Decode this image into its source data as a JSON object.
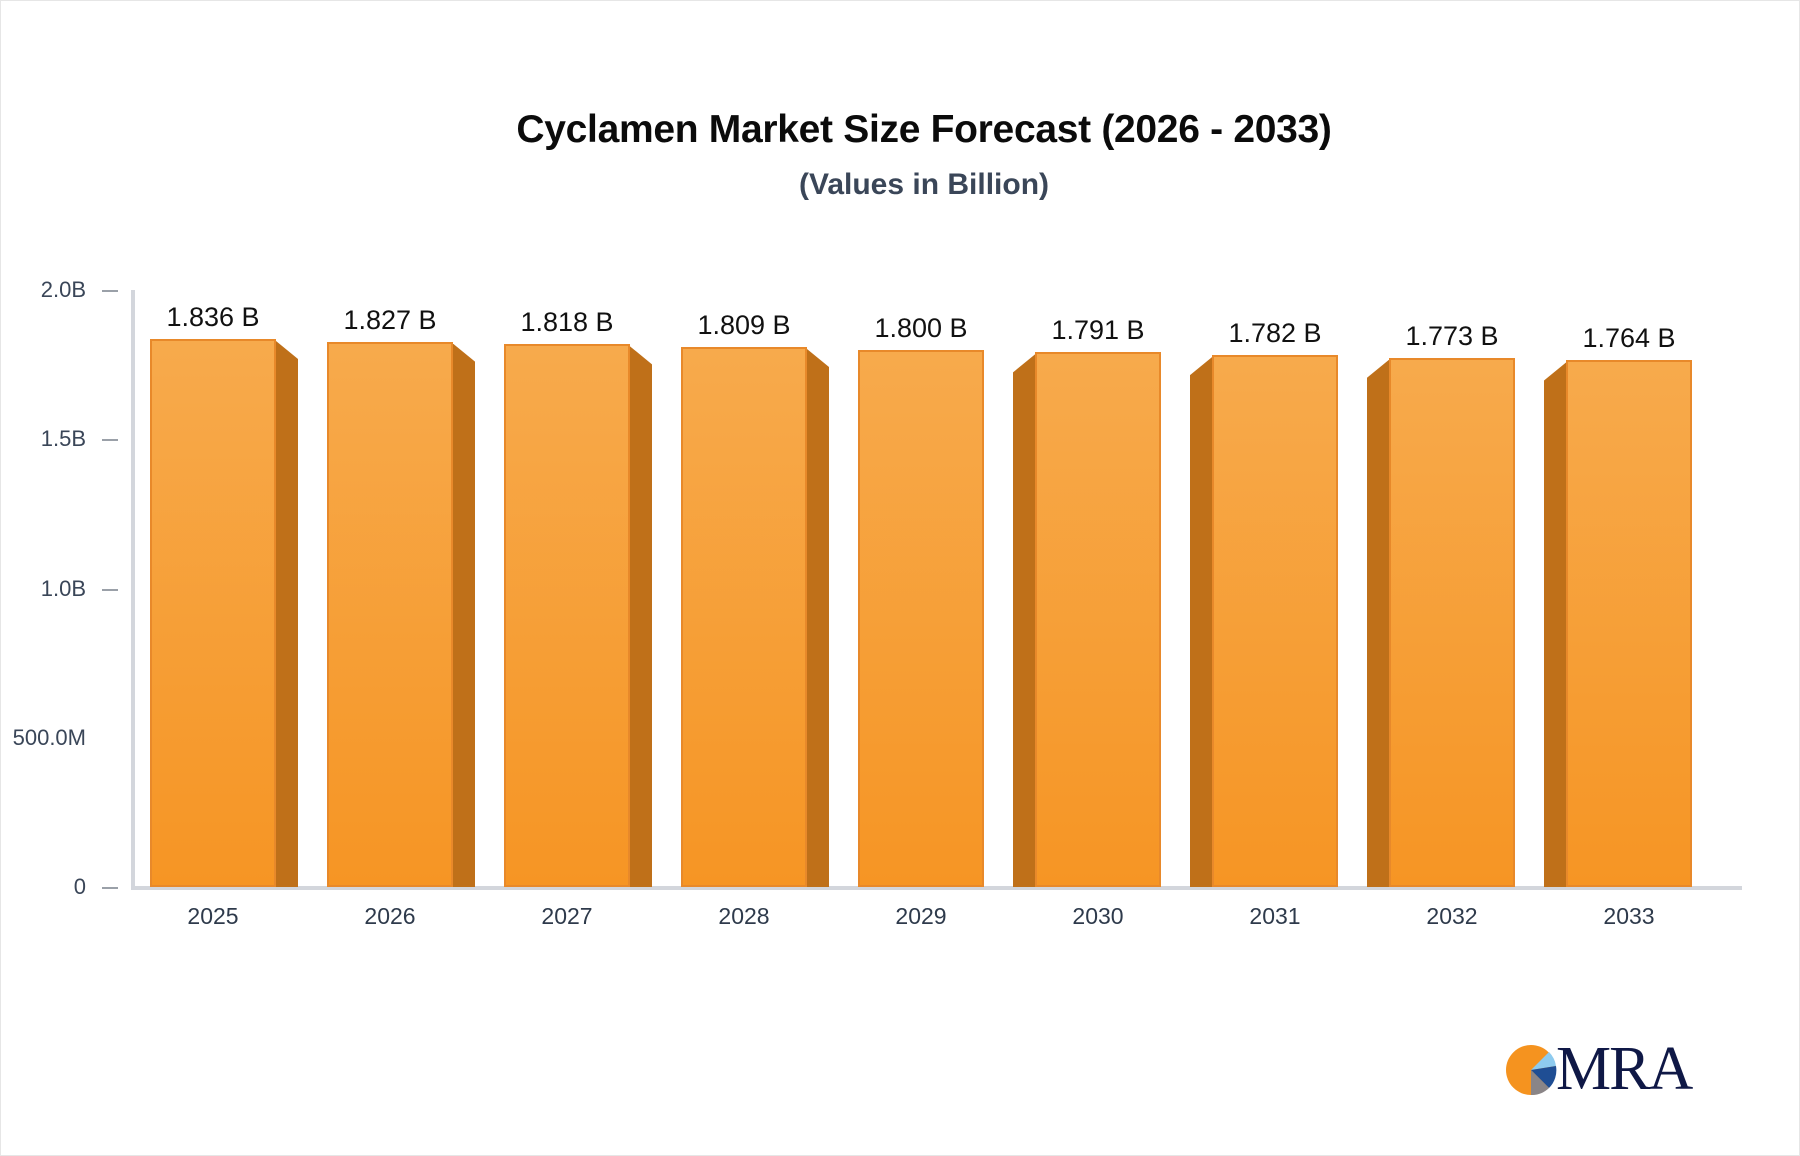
{
  "title": "Cyclamen Market Size Forecast (2026 - 2033)",
  "subtitle": "(Values in Billion)",
  "logo": {
    "text": "MRA",
    "icon": "pie-chart-logo-icon"
  },
  "colors": {
    "bar_front": "#f69524",
    "bar_top": "#f7aa4c",
    "bar_side": "#bf7019",
    "axis": "#d3d6dc",
    "title": "#0b0b0b",
    "subtitle": "#3a4658"
  },
  "y_axis": {
    "ticks": [
      "2.0B",
      "1.5B",
      "1.0B",
      "500.0M",
      "0"
    ]
  },
  "x_axis": {
    "ticks": [
      "2025",
      "2026",
      "2027",
      "2028",
      "2029",
      "2030",
      "2031",
      "2032",
      "2033"
    ]
  },
  "bars": [
    {
      "year": "2025",
      "value": 1.836,
      "label": "1.836 B"
    },
    {
      "year": "2026",
      "value": 1.827,
      "label": "1.827 B"
    },
    {
      "year": "2027",
      "value": 1.818,
      "label": "1.818 B"
    },
    {
      "year": "2028",
      "value": 1.809,
      "label": "1.809 B"
    },
    {
      "year": "2029",
      "value": 1.8,
      "label": "1.800 B"
    },
    {
      "year": "2030",
      "value": 1.791,
      "label": "1.791 B"
    },
    {
      "year": "2031",
      "value": 1.782,
      "label": "1.782 B"
    },
    {
      "year": "2032",
      "value": 1.773,
      "label": "1.773 B"
    },
    {
      "year": "2033",
      "value": 1.764,
      "label": "1.764 B"
    }
  ],
  "chart_data": {
    "type": "bar",
    "title": "Cyclamen Market Size Forecast (2026 - 2033)",
    "subtitle": "(Values in Billion)",
    "categories": [
      "2025",
      "2026",
      "2027",
      "2028",
      "2029",
      "2030",
      "2031",
      "2032",
      "2033"
    ],
    "values": [
      1.836,
      1.827,
      1.818,
      1.809,
      1.8,
      1.791,
      1.782,
      1.773,
      1.764
    ],
    "data_labels": [
      "1.836 B",
      "1.827 B",
      "1.818 B",
      "1.809 B",
      "1.800 B",
      "1.791 B",
      "1.782 B",
      "1.773 B",
      "1.764 B"
    ],
    "xlabel": "",
    "ylabel": "",
    "ylim": [
      0,
      2.0
    ],
    "y_tick_labels": [
      "0",
      "500.0M",
      "1.0B",
      "1.5B",
      "2.0B"
    ],
    "unit": "Billion",
    "grid": false,
    "legend": "none"
  }
}
